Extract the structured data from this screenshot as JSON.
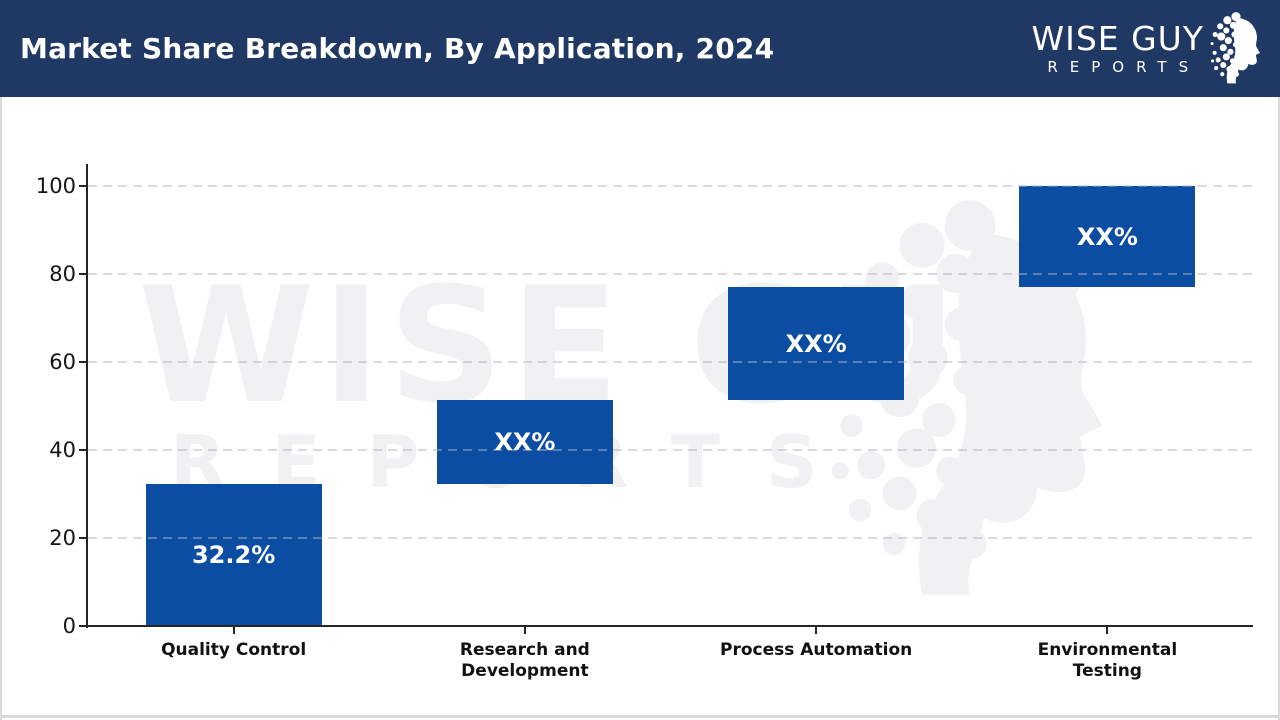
{
  "page": {
    "header": {
      "title": "Market Share Breakdown, By Application, 2024",
      "logo": {
        "line1": "WISE GUY",
        "line2": "REPORTS",
        "head_icon": "dotted-face-profile"
      },
      "bg_color": "#203864",
      "text_color": "#ffffff"
    },
    "watermark": {
      "line1": "WISE GUY",
      "line2": "REPORTS",
      "head_icon": "dotted-face-profile",
      "color": "#f1f1f3"
    },
    "colors": {
      "bar": "#0b4da2",
      "bar_label_text": "#ffffff",
      "axis": "#262626",
      "tick_label_text": "#141414",
      "category_label_text": "#111111",
      "gridline": "rgba(175,180,190,0.5)",
      "frame_border": "#d9d9d9",
      "background": "#ffffff"
    }
  },
  "chart_data": {
    "type": "bar",
    "subtype": "waterfall",
    "title": "Market Share Breakdown, By Application, 2024",
    "categories": [
      "Quality Control",
      "Research and Development",
      "Process Automation",
      "Environmental Testing"
    ],
    "category_label_lines": [
      [
        "Quality Control"
      ],
      [
        "Research and",
        "Development"
      ],
      [
        "Process Automation"
      ],
      [
        "Environmental",
        "Testing"
      ]
    ],
    "segments": [
      {
        "category": "Quality Control",
        "start": 0,
        "end": 32.2,
        "label": "32.2%"
      },
      {
        "category": "Research and Development",
        "start": 32.2,
        "end": 51.4,
        "label": "XX%"
      },
      {
        "category": "Process Automation",
        "start": 51.4,
        "end": 77.0,
        "label": "XX%"
      },
      {
        "category": "Environmental Testing",
        "start": 77.0,
        "end": 100.0,
        "label": "XX%"
      }
    ],
    "xlabel": "",
    "ylabel": "",
    "ylim": [
      0,
      100
    ],
    "yticks": [
      0,
      20,
      40,
      60,
      80,
      100
    ],
    "grid": {
      "horizontal": true,
      "style": "dashed",
      "drawn_above_bars": true
    },
    "legend": "none",
    "bar_color": "#0b4da2",
    "bar_label_color": "#ffffff"
  }
}
